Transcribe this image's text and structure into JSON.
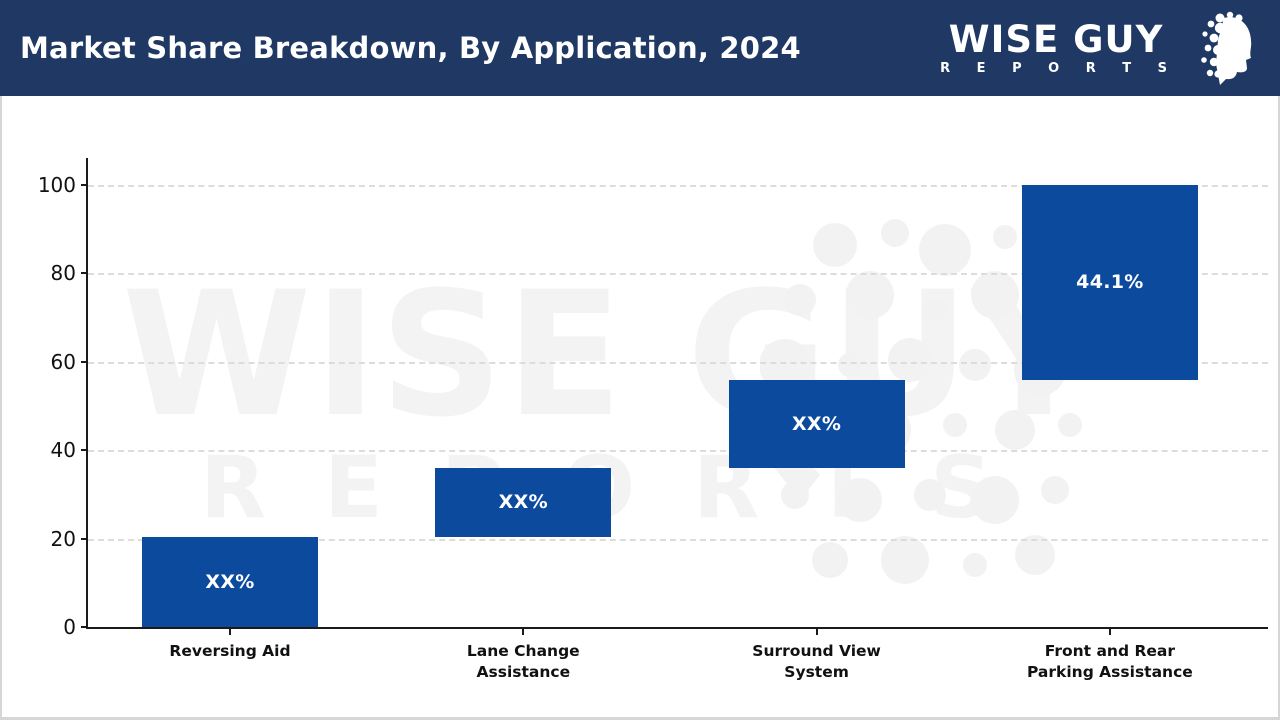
{
  "header": {
    "title": "Market Share Breakdown, By Application, 2024",
    "bg_color": "#1f3864",
    "logo": {
      "line1": "WISE GUY",
      "line2": "R E P O R T S"
    }
  },
  "watermark": {
    "line1": "WISE GUY",
    "line2": "REPORTS"
  },
  "chart_data": {
    "type": "bar",
    "subtype": "floating-waterfall",
    "title": "Market Share Breakdown, By Application, 2024",
    "categories": [
      [
        "Reversing Aid"
      ],
      [
        "Lane Change",
        "Assistance"
      ],
      [
        "Surround View",
        "System"
      ],
      [
        "Front and Rear",
        "Parking Assistance"
      ]
    ],
    "series": [
      {
        "name": "Market Share %",
        "segments": [
          {
            "category": "Reversing Aid",
            "start": 0,
            "end": 20.4,
            "label": "XX%"
          },
          {
            "category": "Lane Change Assistance",
            "start": 20.4,
            "end": 36.0,
            "label": "XX%"
          },
          {
            "category": "Surround View System",
            "start": 36.0,
            "end": 55.9,
            "label": "XX%"
          },
          {
            "category": "Front and Rear Parking Assistance",
            "start": 55.9,
            "end": 100.0,
            "label": "44.1%"
          }
        ]
      }
    ],
    "yticks": [
      0,
      20,
      40,
      60,
      80,
      100
    ],
    "ylim": [
      0,
      106
    ],
    "xlabel": "",
    "ylabel": "",
    "grid": "horizontal-dashed",
    "legend": "none",
    "bar_color": "#0c4a9e",
    "bar_label_color": "#ffffff",
    "axis_color": "#1a1a1a",
    "grid_color": "#dcdcdc"
  }
}
